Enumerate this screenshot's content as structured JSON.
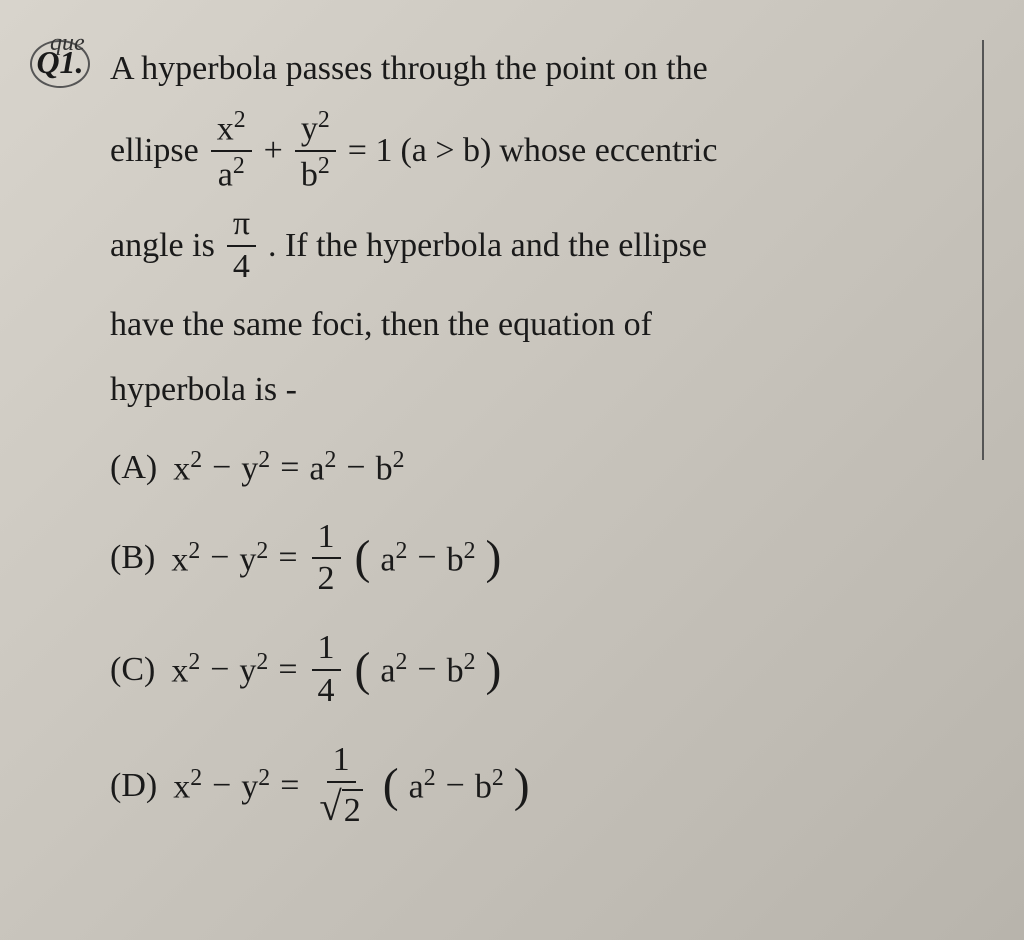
{
  "meta": {
    "cutoff_text": "que"
  },
  "question": {
    "number": "Q1.",
    "line1_a": "A hyperbola passes through the point on the",
    "line2_a": "ellipse",
    "frac1_num": "x",
    "frac1_den": "a",
    "plus": "+",
    "frac2_num": "y",
    "frac2_den": "b",
    "eq1": "= 1",
    "cond": "(a > b)",
    "line2_b": "whose eccentric",
    "line3_a": "angle is",
    "pi": "π",
    "four": "4",
    "line3_b": ". If the hyperbola and the ellipse",
    "line4": "have the same foci, then the equation of",
    "line5": "hyperbola is -"
  },
  "options": {
    "A": {
      "label": "(A)",
      "lhs": "x",
      "minus": "−",
      "y": "y",
      "eq": "=",
      "a": "a",
      "b": "b"
    },
    "B": {
      "label": "(B)",
      "lhs": "x",
      "minus": "−",
      "y": "y",
      "eq": "=",
      "num": "1",
      "den": "2",
      "lp": "(",
      "a": "a",
      "b": "b",
      "rp": ")"
    },
    "C": {
      "label": "(C)",
      "lhs": "x",
      "minus": "−",
      "y": "y",
      "eq": "=",
      "num": "1",
      "den": "4",
      "lp": "(",
      "a": "a",
      "b": "b",
      "rp": ")"
    },
    "D": {
      "label": "(D)",
      "lhs": "x",
      "minus": "−",
      "y": "y",
      "eq": "=",
      "num": "1",
      "den_sqrt": "2",
      "lp": "(",
      "a": "a",
      "b": "b",
      "rp": ")"
    }
  },
  "styling": {
    "background_gradient": [
      "#d8d4cc",
      "#c8c4bc",
      "#b8b4ac"
    ],
    "text_color": "#1a1a1a",
    "font_family": "Georgia, Times New Roman, serif",
    "base_fontsize": 34,
    "qnumber_fontsize": 32,
    "line_height": 1.7
  }
}
